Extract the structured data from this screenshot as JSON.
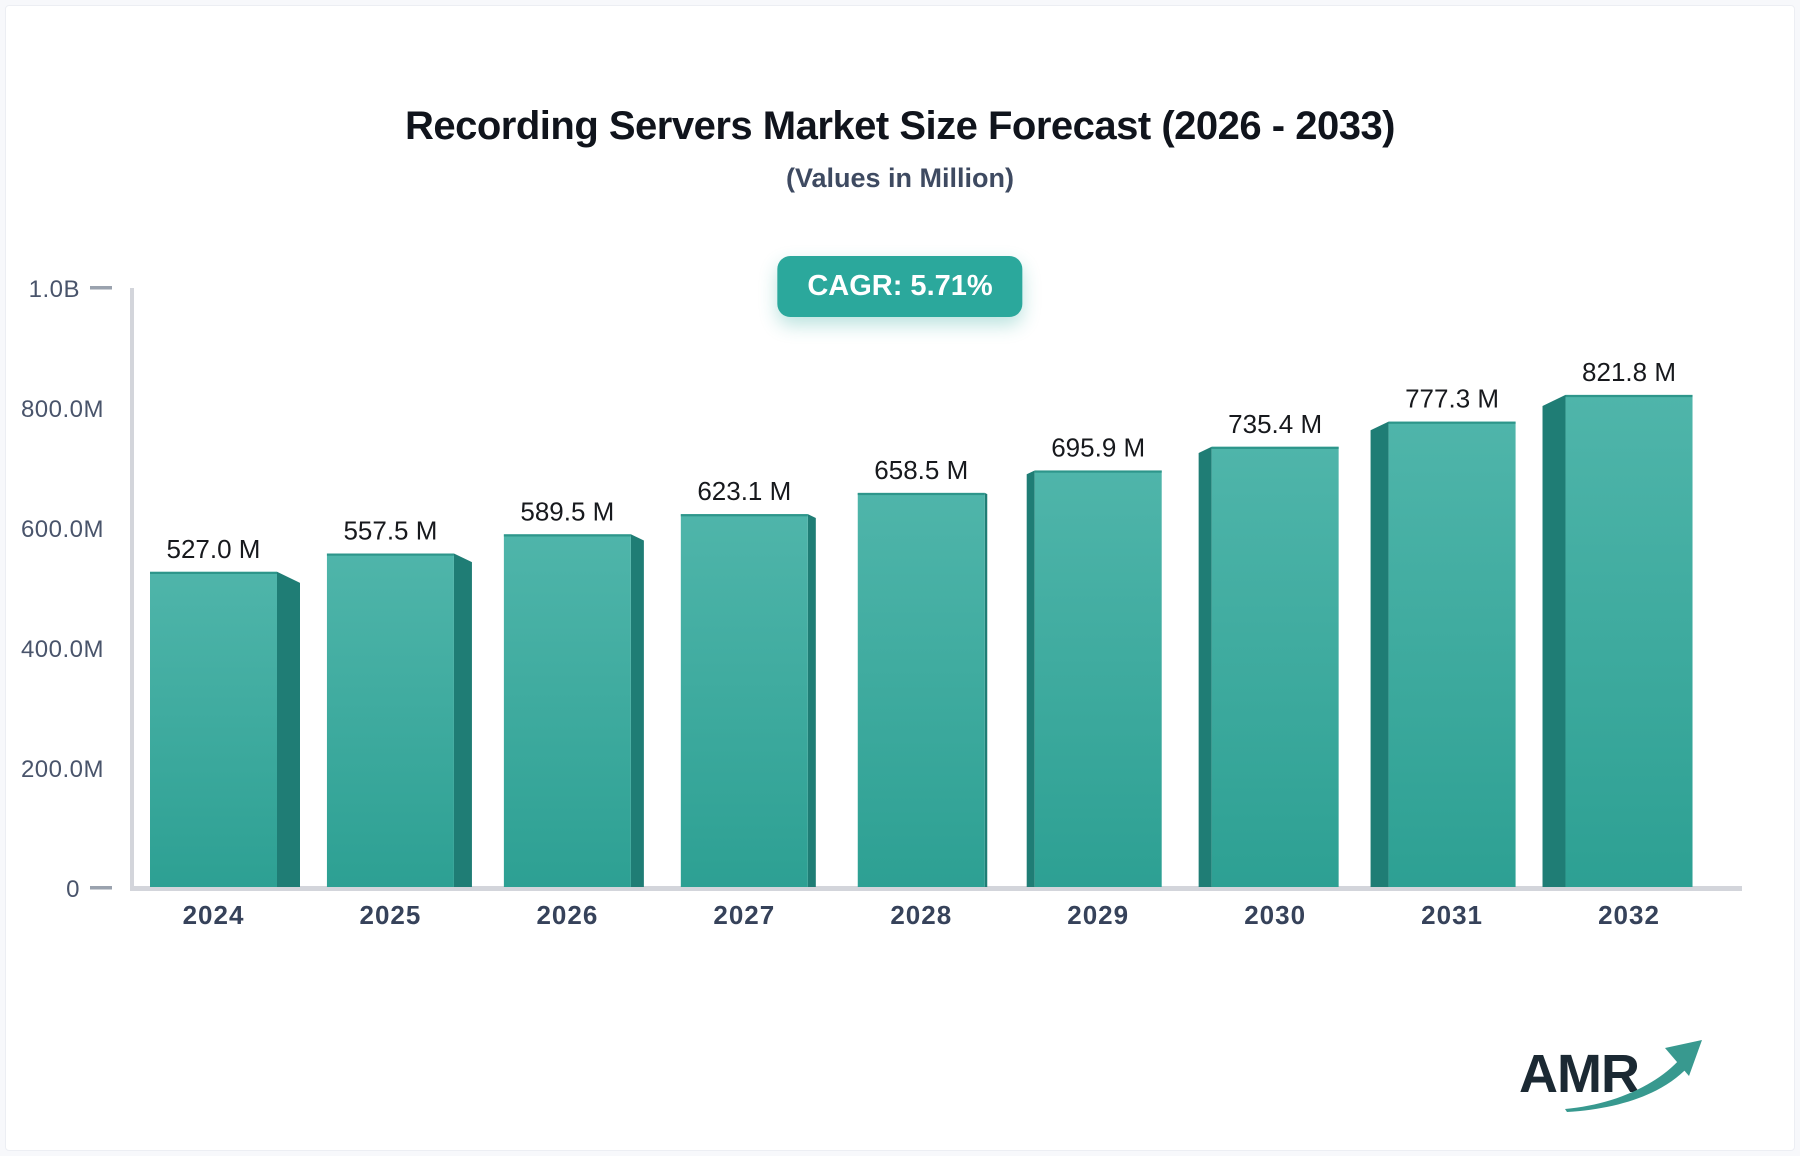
{
  "header": {
    "title": "Recording Servers Market Size Forecast (2026 - 2033)",
    "subtitle": "(Values in Million)",
    "badge": "CAGR: 5.71%"
  },
  "chart_data": {
    "type": "bar",
    "title": "Recording Servers Market Size Forecast (2026 - 2033)",
    "subtitle": "(Values in Million)",
    "cagr": "5.71%",
    "categories": [
      "2024",
      "2025",
      "2026",
      "2027",
      "2028",
      "2029",
      "2030",
      "2031",
      "2032"
    ],
    "values": [
      527.0,
      557.5,
      589.5,
      623.1,
      658.5,
      695.9,
      735.4,
      777.3,
      821.8
    ],
    "value_labels": [
      "527.0 M",
      "557.5 M",
      "589.5 M",
      "623.1 M",
      "658.5 M",
      "695.9 M",
      "735.4 M",
      "777.3 M",
      "821.8 M"
    ],
    "xlabel": "",
    "ylabel": "",
    "ylim": [
      0,
      1000
    ],
    "grid": "off",
    "legend": "none",
    "y_ticks": [
      {
        "label": "1.0B",
        "value": 1000,
        "dash": true
      },
      {
        "label": "800.0M",
        "value": 800,
        "dash": false
      },
      {
        "label": "600.0M",
        "value": 600,
        "dash": false
      },
      {
        "label": "400.0M",
        "value": 400,
        "dash": false
      },
      {
        "label": "200.0M",
        "value": 200,
        "dash": false
      },
      {
        "label": "0",
        "value": 0,
        "dash": true
      }
    ],
    "colors": {
      "bar_top": "#4fb5aa",
      "bar_bottom": "#2da093",
      "bar_edge": "#2e968b",
      "bar_side": "#1f7d75",
      "axis_line": "#d3d5db",
      "tick_dash": "#9aa2ae",
      "tick_label": "#49546b",
      "year_label": "#36425a",
      "value_label": "#17191d",
      "badge_bg": "#2ba89c"
    }
  },
  "logo": {
    "text": "AMR",
    "text_color": "#1b2933",
    "arrow_color": "#38998f"
  }
}
